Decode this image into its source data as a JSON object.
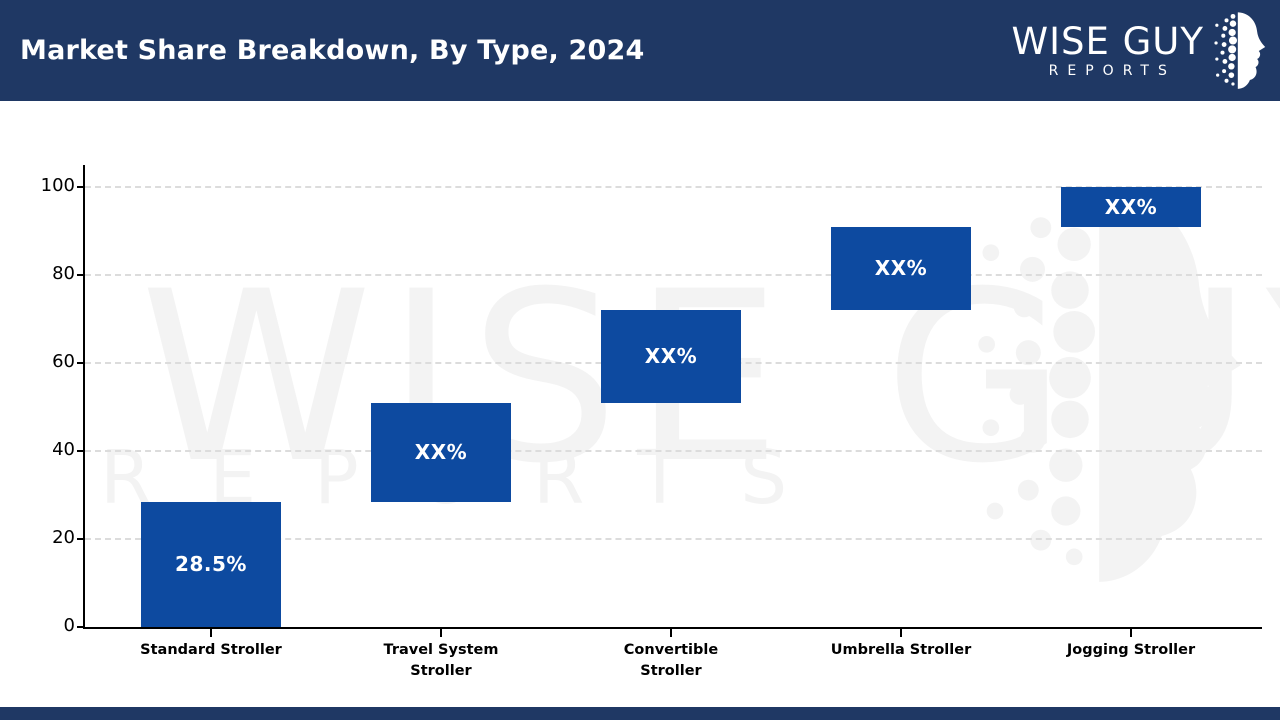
{
  "header": {
    "title": "Market Share Breakdown, By Type, 2024",
    "logo": {
      "primary": "WISE GUY",
      "secondary": "REPORTS"
    }
  },
  "watermark": {
    "primary": "WISE GUY",
    "secondary": "REPORTS"
  },
  "chart_data": {
    "type": "waterfall",
    "title": "Market Share Breakdown, By Type, 2024",
    "categories": [
      "Standard Stroller",
      "Travel System\nStroller",
      "Convertible\nStroller",
      "Umbrella Stroller",
      "Jogging Stroller"
    ],
    "series": [
      {
        "name": "Market Share",
        "starts": [
          0,
          28.5,
          51,
          72,
          91
        ],
        "ends": [
          28.5,
          51,
          72,
          91,
          100
        ],
        "labels": [
          "28.5%",
          "XX%",
          "XX%",
          "XX%",
          "XX%"
        ]
      }
    ],
    "xlabel": "",
    "ylabel": "",
    "yticks": [
      0,
      20,
      40,
      60,
      80,
      100
    ],
    "ylim": [
      0,
      105
    ],
    "grid": "horizontal-dashed",
    "legend": "none",
    "colors": {
      "bar": "#0d4aa0",
      "header_bg": "#1f3864",
      "grid": "#dcdcdc",
      "bar_label": "#ffffff",
      "axis": "#000000",
      "watermark": "#f3f3f3"
    }
  }
}
